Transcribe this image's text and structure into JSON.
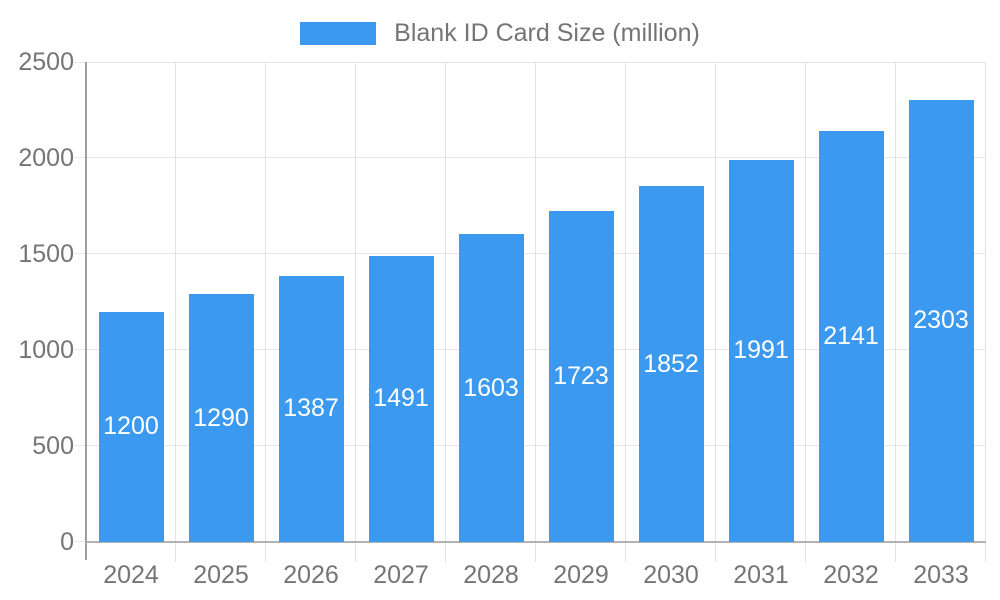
{
  "legend": {
    "label": "Blank ID Card Size (million)",
    "swatch_color": "#3B99F0"
  },
  "chart_data": {
    "type": "bar",
    "title": "Blank ID Card Size (million)",
    "categories": [
      "2024",
      "2025",
      "2026",
      "2027",
      "2028",
      "2029",
      "2030",
      "2031",
      "2032",
      "2033"
    ],
    "values": [
      1200,
      1290,
      1387,
      1491,
      1603,
      1723,
      1852,
      1991,
      2141,
      2303
    ],
    "xlabel": "",
    "ylabel": "",
    "ylim": [
      0,
      2500
    ],
    "y_ticks": [
      0,
      500,
      1000,
      1500,
      2000,
      2500
    ],
    "grid": true,
    "legend_position": "top",
    "bar_color": "#3B99F0",
    "value_label_color": "#FFFFFF",
    "axis_text_color": "#757575",
    "gridline_color": "#E6E6E6",
    "baseline_color": "#B3B3B3"
  }
}
